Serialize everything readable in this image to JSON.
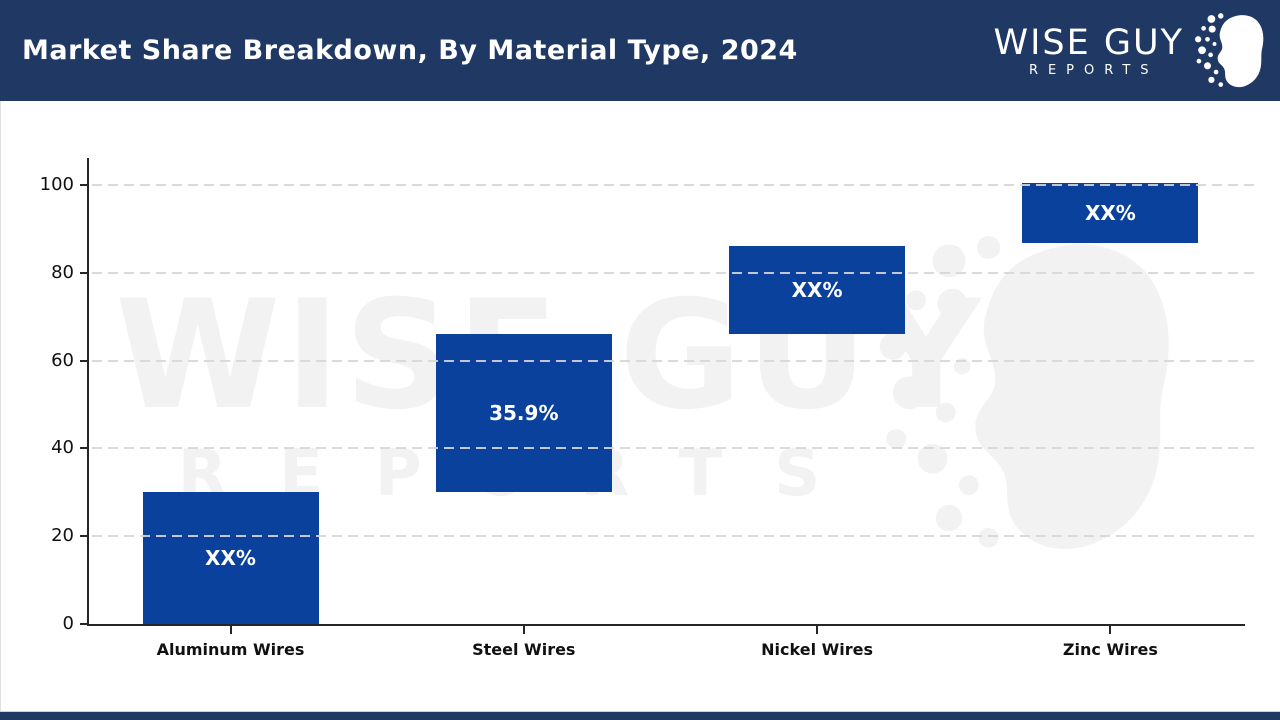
{
  "header": {
    "title": "Market Share Breakdown, By Material Type, 2024",
    "logo": {
      "line1": "WISE GUY",
      "line2": "REPORTS"
    }
  },
  "watermark": {
    "line1": "WISE GUY",
    "line2": "REPORTS"
  },
  "colors": {
    "header_bg": "#1f3864",
    "bar_fill": "#09419c",
    "gridline": "#d6d6d6",
    "axis": "#262626",
    "watermark": "#f2f2f3",
    "bar_label_text": "#ffffff"
  },
  "chart_data": {
    "type": "bar",
    "subtype": "waterfall",
    "title": "Market Share Breakdown, By Material Type, 2024",
    "xlabel": "",
    "ylabel": "",
    "categories": [
      "Aluminum Wires",
      "Steel Wires",
      "Nickel Wires",
      "Zinc Wires"
    ],
    "segments": [
      {
        "category": "Aluminum Wires",
        "start": 0,
        "end": 30.1,
        "value": 30.1,
        "label": "XX%"
      },
      {
        "category": "Steel Wires",
        "start": 30.1,
        "end": 66.0,
        "value": 35.9,
        "label": "35.9%"
      },
      {
        "category": "Nickel Wires",
        "start": 66.1,
        "end": 86.2,
        "value": 20.1,
        "label": "XX%"
      },
      {
        "category": "Zinc Wires",
        "start": 86.8,
        "end": 100.4,
        "value": 13.6,
        "label": "XX%"
      }
    ],
    "yticks": [
      0,
      20,
      40,
      60,
      80,
      100
    ],
    "ylim": [
      0,
      106.5
    ],
    "grid": "dashed horizontal",
    "legend": null
  }
}
